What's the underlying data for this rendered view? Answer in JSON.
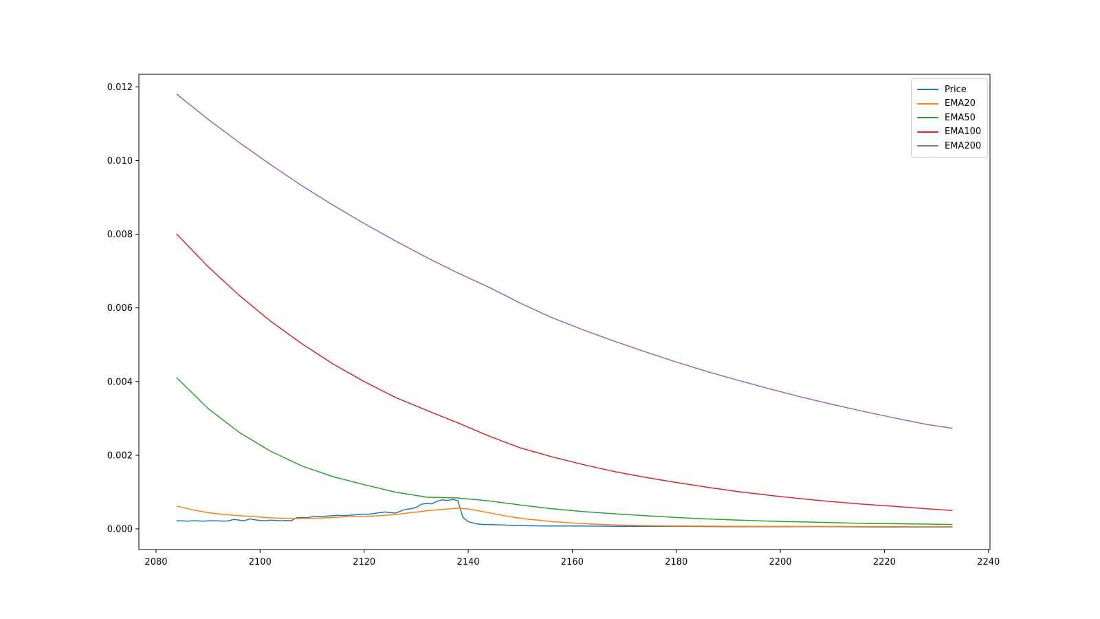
{
  "figure": {
    "background": "#ffffff"
  },
  "chart_data": {
    "type": "line",
    "title": "",
    "xlabel": "",
    "ylabel": "",
    "grid": false,
    "xlim": [
      2076.7,
      2240.3
    ],
    "ylim": [
      -0.00056,
      0.012342
    ],
    "x_ticks": [
      "2080",
      "2100",
      "2120",
      "2140",
      "2160",
      "2180",
      "2200",
      "2220",
      "2240"
    ],
    "x_tick_values": [
      2080,
      2100,
      2120,
      2140,
      2160,
      2180,
      2200,
      2220,
      2240
    ],
    "y_ticks": [
      "0.000",
      "0.002",
      "0.004",
      "0.006",
      "0.008",
      "0.010",
      "0.012"
    ],
    "y_tick_values": [
      0.0,
      0.002,
      0.004,
      0.006,
      0.008,
      0.01,
      0.012
    ],
    "legend": {
      "position": "upper right",
      "entries": [
        "Price",
        "EMA20",
        "EMA50",
        "EMA100",
        "EMA200"
      ]
    },
    "series": [
      {
        "name": "Price",
        "color": "#1f77b4",
        "x": [
          2084,
          2085,
          2086,
          2087,
          2088,
          2089,
          2090,
          2091,
          2092,
          2093,
          2094,
          2095,
          2096,
          2097,
          2098,
          2099,
          2100,
          2101,
          2102,
          2103,
          2104,
          2105,
          2106,
          2107,
          2108,
          2109,
          2110,
          2111,
          2112,
          2113,
          2114,
          2115,
          2116,
          2117,
          2118,
          2119,
          2120,
          2121,
          2122,
          2123,
          2124,
          2125,
          2126,
          2127,
          2128,
          2129,
          2130,
          2131,
          2132,
          2133,
          2134,
          2135,
          2136,
          2137,
          2138,
          2139,
          2140,
          2141,
          2142,
          2143,
          2144,
          2146,
          2148,
          2150,
          2155,
          2160,
          2170,
          2180,
          2190,
          2200,
          2210,
          2220,
          2233
        ],
        "y": [
          0.00022,
          0.00022,
          0.00021,
          0.00022,
          0.00022,
          0.00021,
          0.00022,
          0.00022,
          0.00022,
          0.00021,
          0.00022,
          0.00026,
          0.00024,
          0.00022,
          0.00027,
          0.00025,
          0.00023,
          0.00022,
          0.00024,
          0.00023,
          0.00022,
          0.00023,
          0.00022,
          0.0003,
          0.00031,
          0.0003,
          0.00033,
          0.00034,
          0.00033,
          0.00035,
          0.00036,
          0.00037,
          0.00036,
          0.00037,
          0.00038,
          0.00039,
          0.0004,
          0.0004,
          0.00042,
          0.00044,
          0.00046,
          0.00044,
          0.00043,
          0.00048,
          0.00053,
          0.00055,
          0.00058,
          0.00067,
          0.00069,
          0.00068,
          0.00075,
          0.00079,
          0.00077,
          0.0008,
          0.00077,
          0.00031,
          0.0002,
          0.00016,
          0.00013,
          0.00012,
          0.00012,
          0.00011,
          0.0001,
          9e-05,
          8e-05,
          8e-05,
          7e-05,
          7e-05,
          6e-05,
          6e-05,
          6e-05,
          5e-05,
          5e-05
        ]
      },
      {
        "name": "EMA20",
        "color": "#ff7f0e",
        "x": [
          2084,
          2087,
          2090,
          2093,
          2096,
          2099,
          2102,
          2105,
          2108,
          2111,
          2114,
          2117,
          2120,
          2123,
          2126,
          2129,
          2132,
          2135,
          2138,
          2140,
          2142,
          2145,
          2148,
          2151,
          2154,
          2157,
          2160,
          2164,
          2168,
          2174,
          2180,
          2192,
          2210,
          2233
        ],
        "y": [
          0.00062,
          0.00052,
          0.00044,
          0.00039,
          0.00036,
          0.00033,
          0.0003,
          0.00028,
          0.00028,
          0.00029,
          0.00031,
          0.00033,
          0.00034,
          0.00036,
          0.00039,
          0.00044,
          0.00049,
          0.00053,
          0.00056,
          0.00054,
          0.00049,
          0.00041,
          0.00033,
          0.00027,
          0.00023,
          0.00019,
          0.00016,
          0.00013,
          0.00011,
          9e-05,
          8e-05,
          7e-05,
          6.5e-05,
          6e-05
        ]
      },
      {
        "name": "EMA50",
        "color": "#2ca02c",
        "x": [
          2084,
          2090,
          2096,
          2102,
          2108,
          2114,
          2120,
          2126,
          2132,
          2138,
          2144,
          2150,
          2156,
          2162,
          2168,
          2174,
          2180,
          2186,
          2192,
          2198,
          2204,
          2210,
          2216,
          2222,
          2228,
          2233
        ],
        "y": [
          0.0041,
          0.00327,
          0.00262,
          0.00211,
          0.00171,
          0.00142,
          0.0012,
          0.001,
          0.00086,
          0.00084,
          0.00076,
          0.00065,
          0.00055,
          0.00047,
          0.00041,
          0.00036,
          0.00031,
          0.00027,
          0.00024,
          0.00021,
          0.00019,
          0.00017,
          0.00015,
          0.00014,
          0.00013,
          0.00012
        ]
      },
      {
        "name": "EMA100",
        "color": "#d62728",
        "x": [
          2084,
          2090,
          2096,
          2102,
          2108,
          2114,
          2120,
          2126,
          2132,
          2138,
          2144,
          2150,
          2156,
          2162,
          2168,
          2174,
          2180,
          2186,
          2192,
          2198,
          2204,
          2210,
          2216,
          2222,
          2228,
          2233
        ],
        "y": [
          0.008,
          0.00712,
          0.00634,
          0.00564,
          0.00503,
          0.00448,
          0.004,
          0.00357,
          0.00322,
          0.00288,
          0.00252,
          0.0022,
          0.00196,
          0.00175,
          0.00156,
          0.0014,
          0.00126,
          0.00113,
          0.00101,
          0.00091,
          0.00082,
          0.00074,
          0.00067,
          0.00061,
          0.00055,
          0.0005
        ]
      },
      {
        "name": "EMA200",
        "color": "#9467bd",
        "x": [
          2084,
          2090,
          2096,
          2102,
          2108,
          2114,
          2120,
          2126,
          2132,
          2138,
          2144,
          2150,
          2156,
          2162,
          2168,
          2174,
          2180,
          2186,
          2192,
          2198,
          2204,
          2210,
          2216,
          2222,
          2228,
          2233
        ],
        "y": [
          0.0118,
          0.01112,
          0.01049,
          0.00989,
          0.00932,
          0.00879,
          0.00829,
          0.00782,
          0.00737,
          0.00695,
          0.00656,
          0.00613,
          0.00574,
          0.00541,
          0.0051,
          0.00481,
          0.00453,
          0.00427,
          0.00403,
          0.0038,
          0.00358,
          0.00338,
          0.00319,
          0.00301,
          0.00284,
          0.00273
        ]
      }
    ]
  }
}
